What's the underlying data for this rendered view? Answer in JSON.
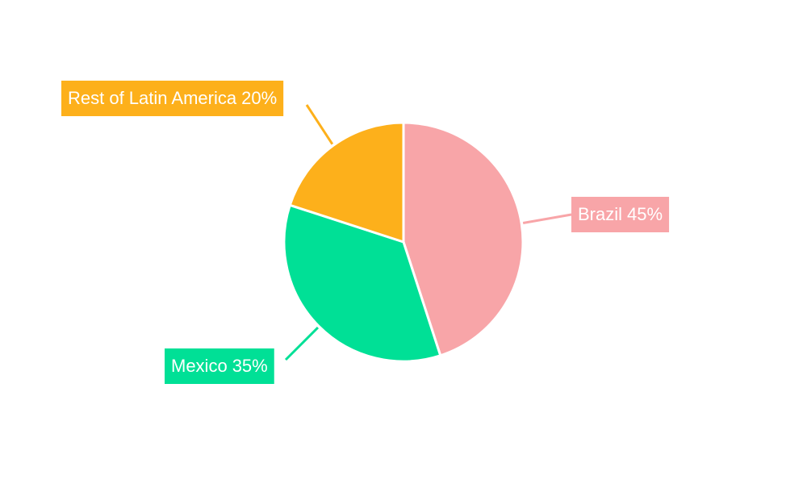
{
  "chart_data": {
    "type": "pie",
    "categories": [
      "Brazil",
      "Mexico",
      "Rest of Latin America"
    ],
    "values": [
      45,
      35,
      20
    ],
    "value_labels": [
      "45%",
      "35%",
      "20%"
    ],
    "colors": [
      "#f8a5a8",
      "#00e096",
      "#fdb01b"
    ]
  }
}
